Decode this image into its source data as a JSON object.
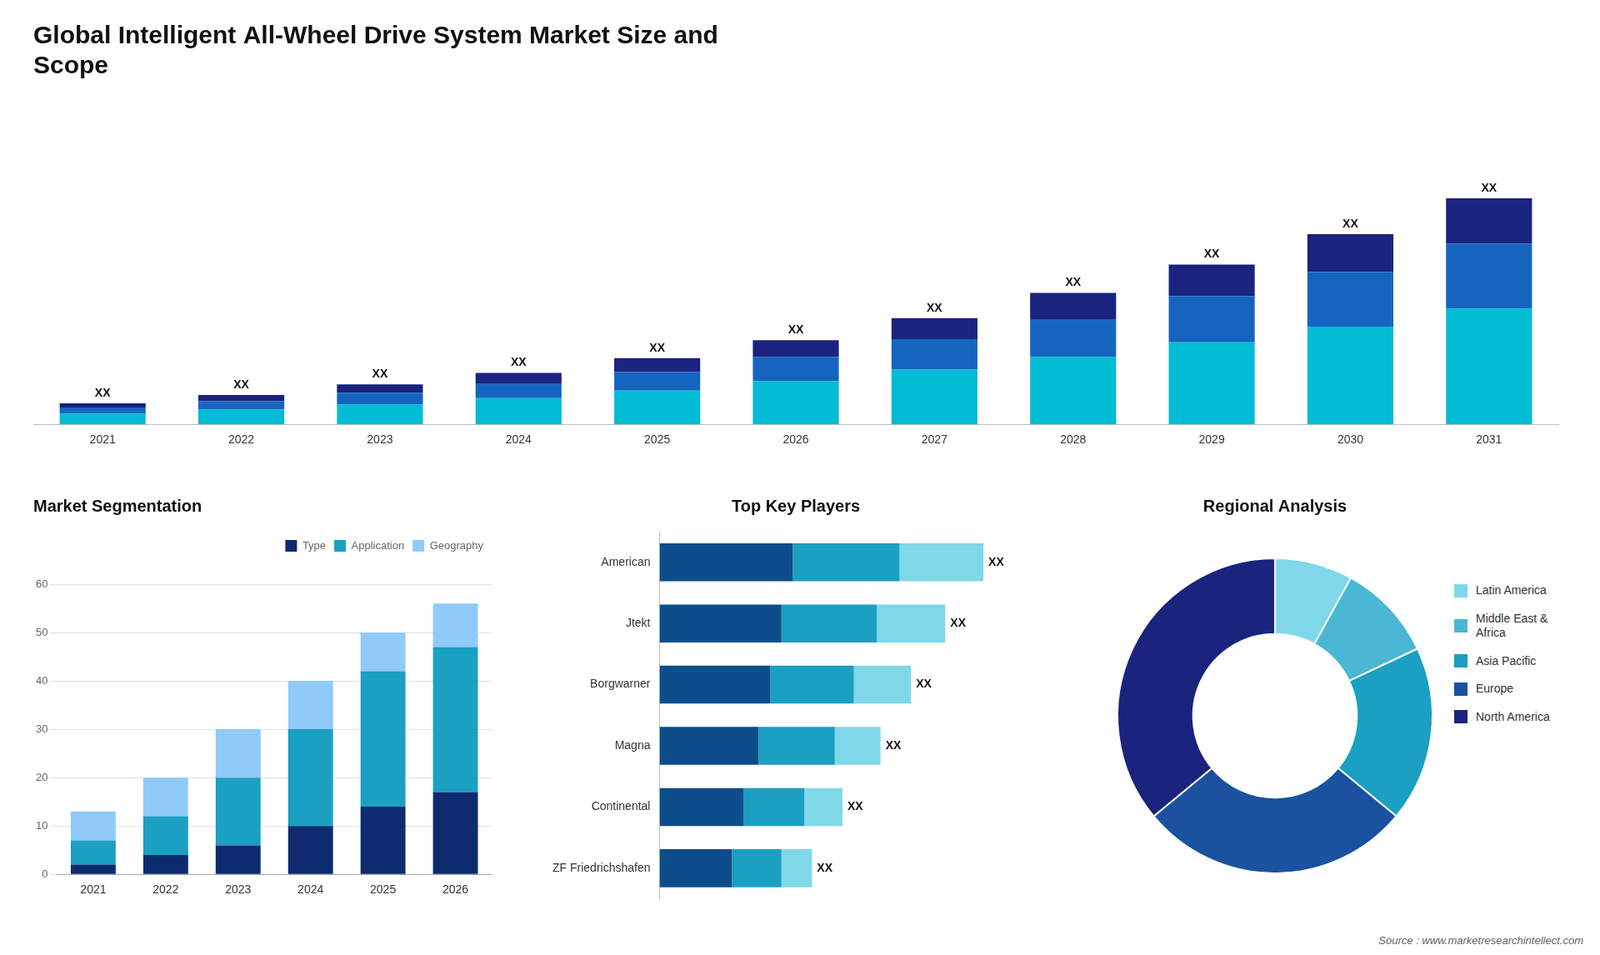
{
  "chart_data": [
    {
      "type": "bar",
      "title": "Global Intelligent All-Wheel Drive System Market Size and\nScope",
      "categories": [
        "2021",
        "2022",
        "2023",
        "2024",
        "2025",
        "2026",
        "2027",
        "2028",
        "2029",
        "2030",
        "2031"
      ],
      "series": [
        {
          "color": "#00bcd4",
          "values": [
            1.0,
            1.4,
            1.9,
            2.5,
            3.2,
            4.1,
            5.2,
            6.4,
            7.8,
            9.3,
            11.0
          ]
        },
        {
          "color": "#1565c0",
          "values": [
            0.6,
            0.8,
            1.1,
            1.4,
            1.8,
            2.3,
            2.9,
            3.6,
            4.4,
            5.2,
            6.2
          ]
        },
        {
          "color": "#1a237e",
          "values": [
            0.4,
            0.6,
            0.8,
            1.0,
            1.3,
            1.6,
            2.0,
            2.5,
            3.0,
            3.6,
            4.3
          ]
        }
      ],
      "stacked": true,
      "ylim": [
        0,
        31.175
      ],
      "tick_labels": "x",
      "grid": false,
      "annotations": [
        {
          "x": "2021",
          "text": "XX"
        },
        {
          "x": "2022",
          "text": "XX"
        },
        {
          "x": "2023",
          "text": "XX"
        },
        {
          "x": "2024",
          "text": "XX"
        },
        {
          "x": "2025",
          "text": "XX"
        },
        {
          "x": "2026",
          "text": "XX"
        },
        {
          "x": "2027",
          "text": "XX"
        },
        {
          "x": "2028",
          "text": "XX"
        },
        {
          "x": "2029",
          "text": "XX"
        },
        {
          "x": "2030",
          "text": "XX"
        },
        {
          "x": "2031",
          "text": "XX"
        }
      ]
    },
    {
      "type": "bar",
      "title": "Market Segmentation",
      "categories": [
        "2021",
        "2022",
        "2023",
        "2024",
        "2025",
        "2026"
      ],
      "series": [
        {
          "name": "Type",
          "color": "#0d2b6e",
          "values": [
            2,
            4,
            6,
            10,
            14,
            17
          ]
        },
        {
          "name": "Application",
          "color": "#1b9fc2",
          "values": [
            5,
            8,
            14,
            20,
            28,
            30
          ]
        },
        {
          "name": "Geography",
          "color": "#90caf9",
          "values": [
            6,
            8,
            10,
            10,
            8,
            9
          ]
        }
      ],
      "stacked": true,
      "ylim": [
        0,
        65
      ],
      "yticks": [
        0,
        10,
        20,
        30,
        40,
        50,
        60
      ],
      "grid": true,
      "legend": "upper right"
    },
    {
      "type": "bar",
      "title": "Top Key Players",
      "orientation": "horizontal",
      "categories": [
        "American",
        "Jtekt",
        "Borgwarner",
        "Magna",
        "Continental",
        "ZF Friedrichshafen"
      ],
      "series": [
        {
          "color": "#0d4d8c",
          "values": [
            3.5,
            3.2,
            2.9,
            2.6,
            2.2,
            1.9
          ]
        },
        {
          "color": "#1b9fc2",
          "values": [
            2.8,
            2.5,
            2.2,
            2.0,
            1.6,
            1.3
          ]
        },
        {
          "color": "#7fd8e8",
          "values": [
            2.2,
            1.8,
            1.5,
            1.2,
            1.0,
            0.8
          ]
        }
      ],
      "stacked": true,
      "xlim": [
        0,
        10.03
      ],
      "tick_labels": "y",
      "grid": false,
      "annotations": [
        {
          "y": "American",
          "text": "XX"
        },
        {
          "y": "Jtekt",
          "text": "XX"
        },
        {
          "y": "Borgwarner",
          "text": "XX"
        },
        {
          "y": "Magna",
          "text": "XX"
        },
        {
          "y": "Continental",
          "text": "XX"
        },
        {
          "y": "ZF Friedrichshafen",
          "text": "XX"
        }
      ]
    },
    {
      "type": "doughnut",
      "title": "Regional Analysis",
      "categories": [
        "Latin America",
        "Middle East &\nAfrica",
        "Asia Pacific",
        "Europe",
        "North America"
      ],
      "values": [
        8,
        10,
        18,
        28,
        36
      ],
      "colors": [
        "#7ed8ea",
        "#4ab8d4",
        "#1b9fc2",
        "#1a52a0",
        "#1a237e"
      ],
      "legend": "right",
      "annotations": [
        "Source : www.marketresearchintellect.com"
      ]
    }
  ]
}
